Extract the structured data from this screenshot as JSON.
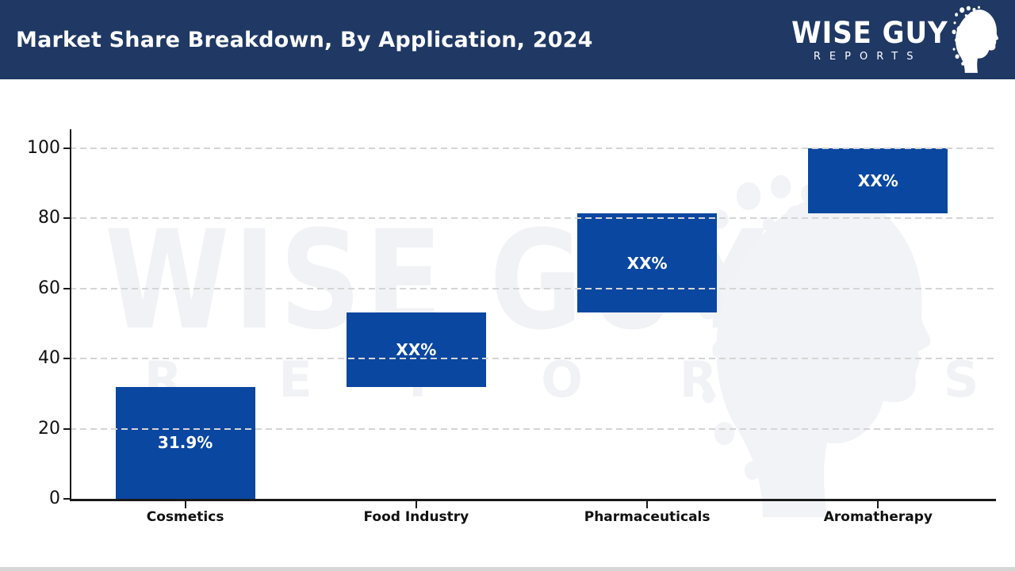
{
  "header": {
    "title": "Market Share Breakdown, By Application, 2024",
    "background_color": "#1f3864",
    "logo": {
      "line1": "WISE GUY",
      "line2": "REPORTS"
    }
  },
  "watermark": {
    "line1": "WISE GUY",
    "line2": "R E P O R T S"
  },
  "chart_data": {
    "type": "bar",
    "subtype": "waterfall",
    "title": "Market Share Breakdown, By Application, 2024",
    "categories": [
      "Cosmetics",
      "Food Industry",
      "Pharmaceuticals",
      "Aromatherapy"
    ],
    "segments": [
      {
        "category": "Cosmetics",
        "start": 0,
        "end": 31.9,
        "label": "31.9%"
      },
      {
        "category": "Food Industry",
        "start": 31.9,
        "end": 53.2,
        "label": "XX%"
      },
      {
        "category": "Pharmaceuticals",
        "start": 53.2,
        "end": 81.4,
        "label": "XX%"
      },
      {
        "category": "Aromatherapy",
        "start": 81.4,
        "end": 100,
        "label": "XX%"
      }
    ],
    "ylim": [
      0,
      100
    ],
    "yticks": [
      0,
      20,
      40,
      60,
      80,
      100
    ],
    "grid": "horizontal-dashed",
    "legend": "none",
    "bar_color": "#0a47a0",
    "label_color": "#ffffff"
  }
}
